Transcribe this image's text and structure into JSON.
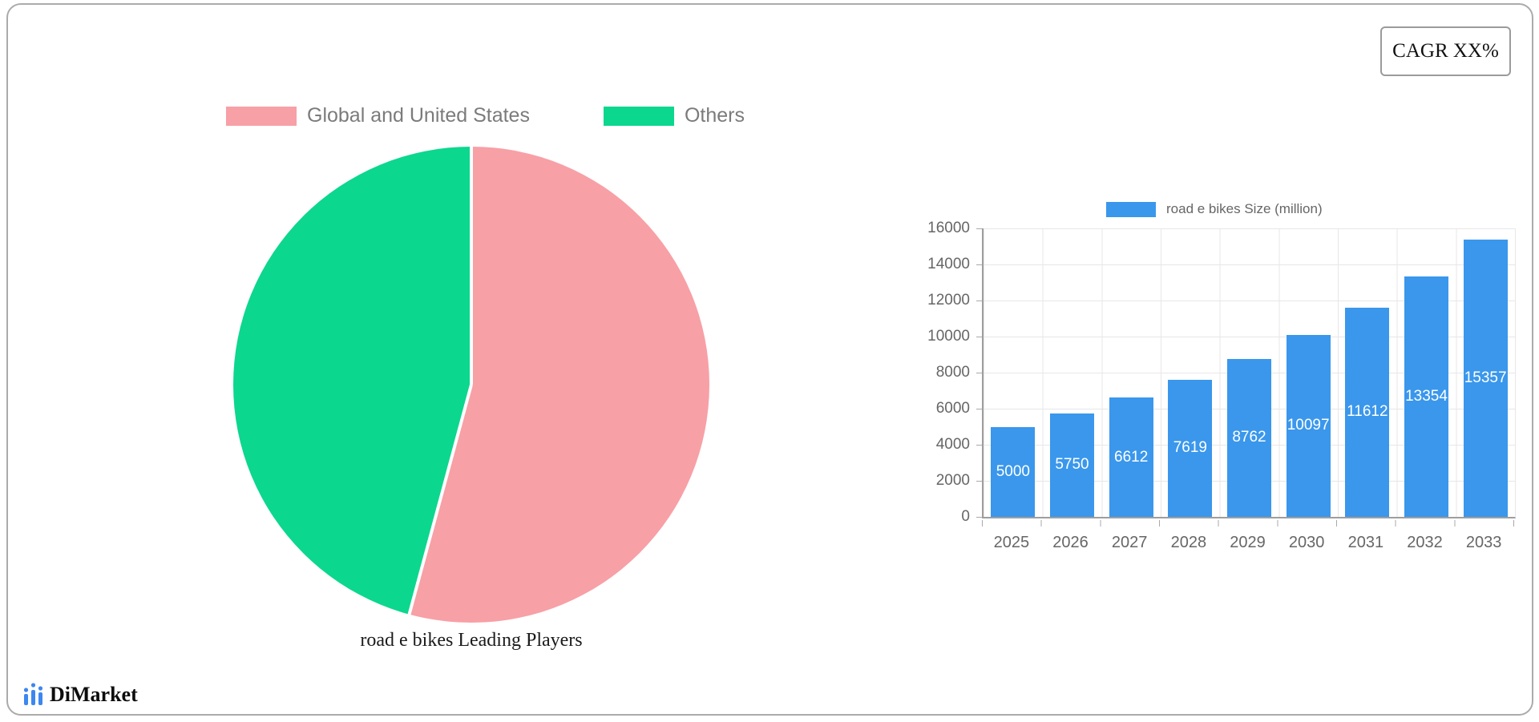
{
  "cagr_box": {
    "label": "CAGR XX%"
  },
  "brand": {
    "name": "DiMarket"
  },
  "chart_data": [
    {
      "type": "pie",
      "title": "road e bikes Leading Players",
      "legend_position": "top",
      "direction": "clockwise",
      "start_angle_deg": 0,
      "slices": [
        {
          "label": "Global and United States",
          "value_pct_est": 54.2,
          "color": "#f7a0a6"
        },
        {
          "label": "Others",
          "value_pct_est": 45.8,
          "color": "#0cd78e"
        }
      ]
    },
    {
      "type": "bar",
      "categories": [
        "2025",
        "2026",
        "2027",
        "2028",
        "2029",
        "2030",
        "2031",
        "2032",
        "2033"
      ],
      "series": [
        {
          "name": "road e bikes Size (million)",
          "color": "#3a97ec",
          "values": [
            5000,
            5750,
            6612,
            7619,
            8762,
            10097,
            11612,
            13354,
            15357
          ]
        }
      ],
      "xlabel": "",
      "ylabel": "",
      "ylim": [
        0,
        16000
      ],
      "ytick_step": 2000,
      "grid": true,
      "legend_position": "top",
      "value_labels": "inside-center-white"
    }
  ]
}
